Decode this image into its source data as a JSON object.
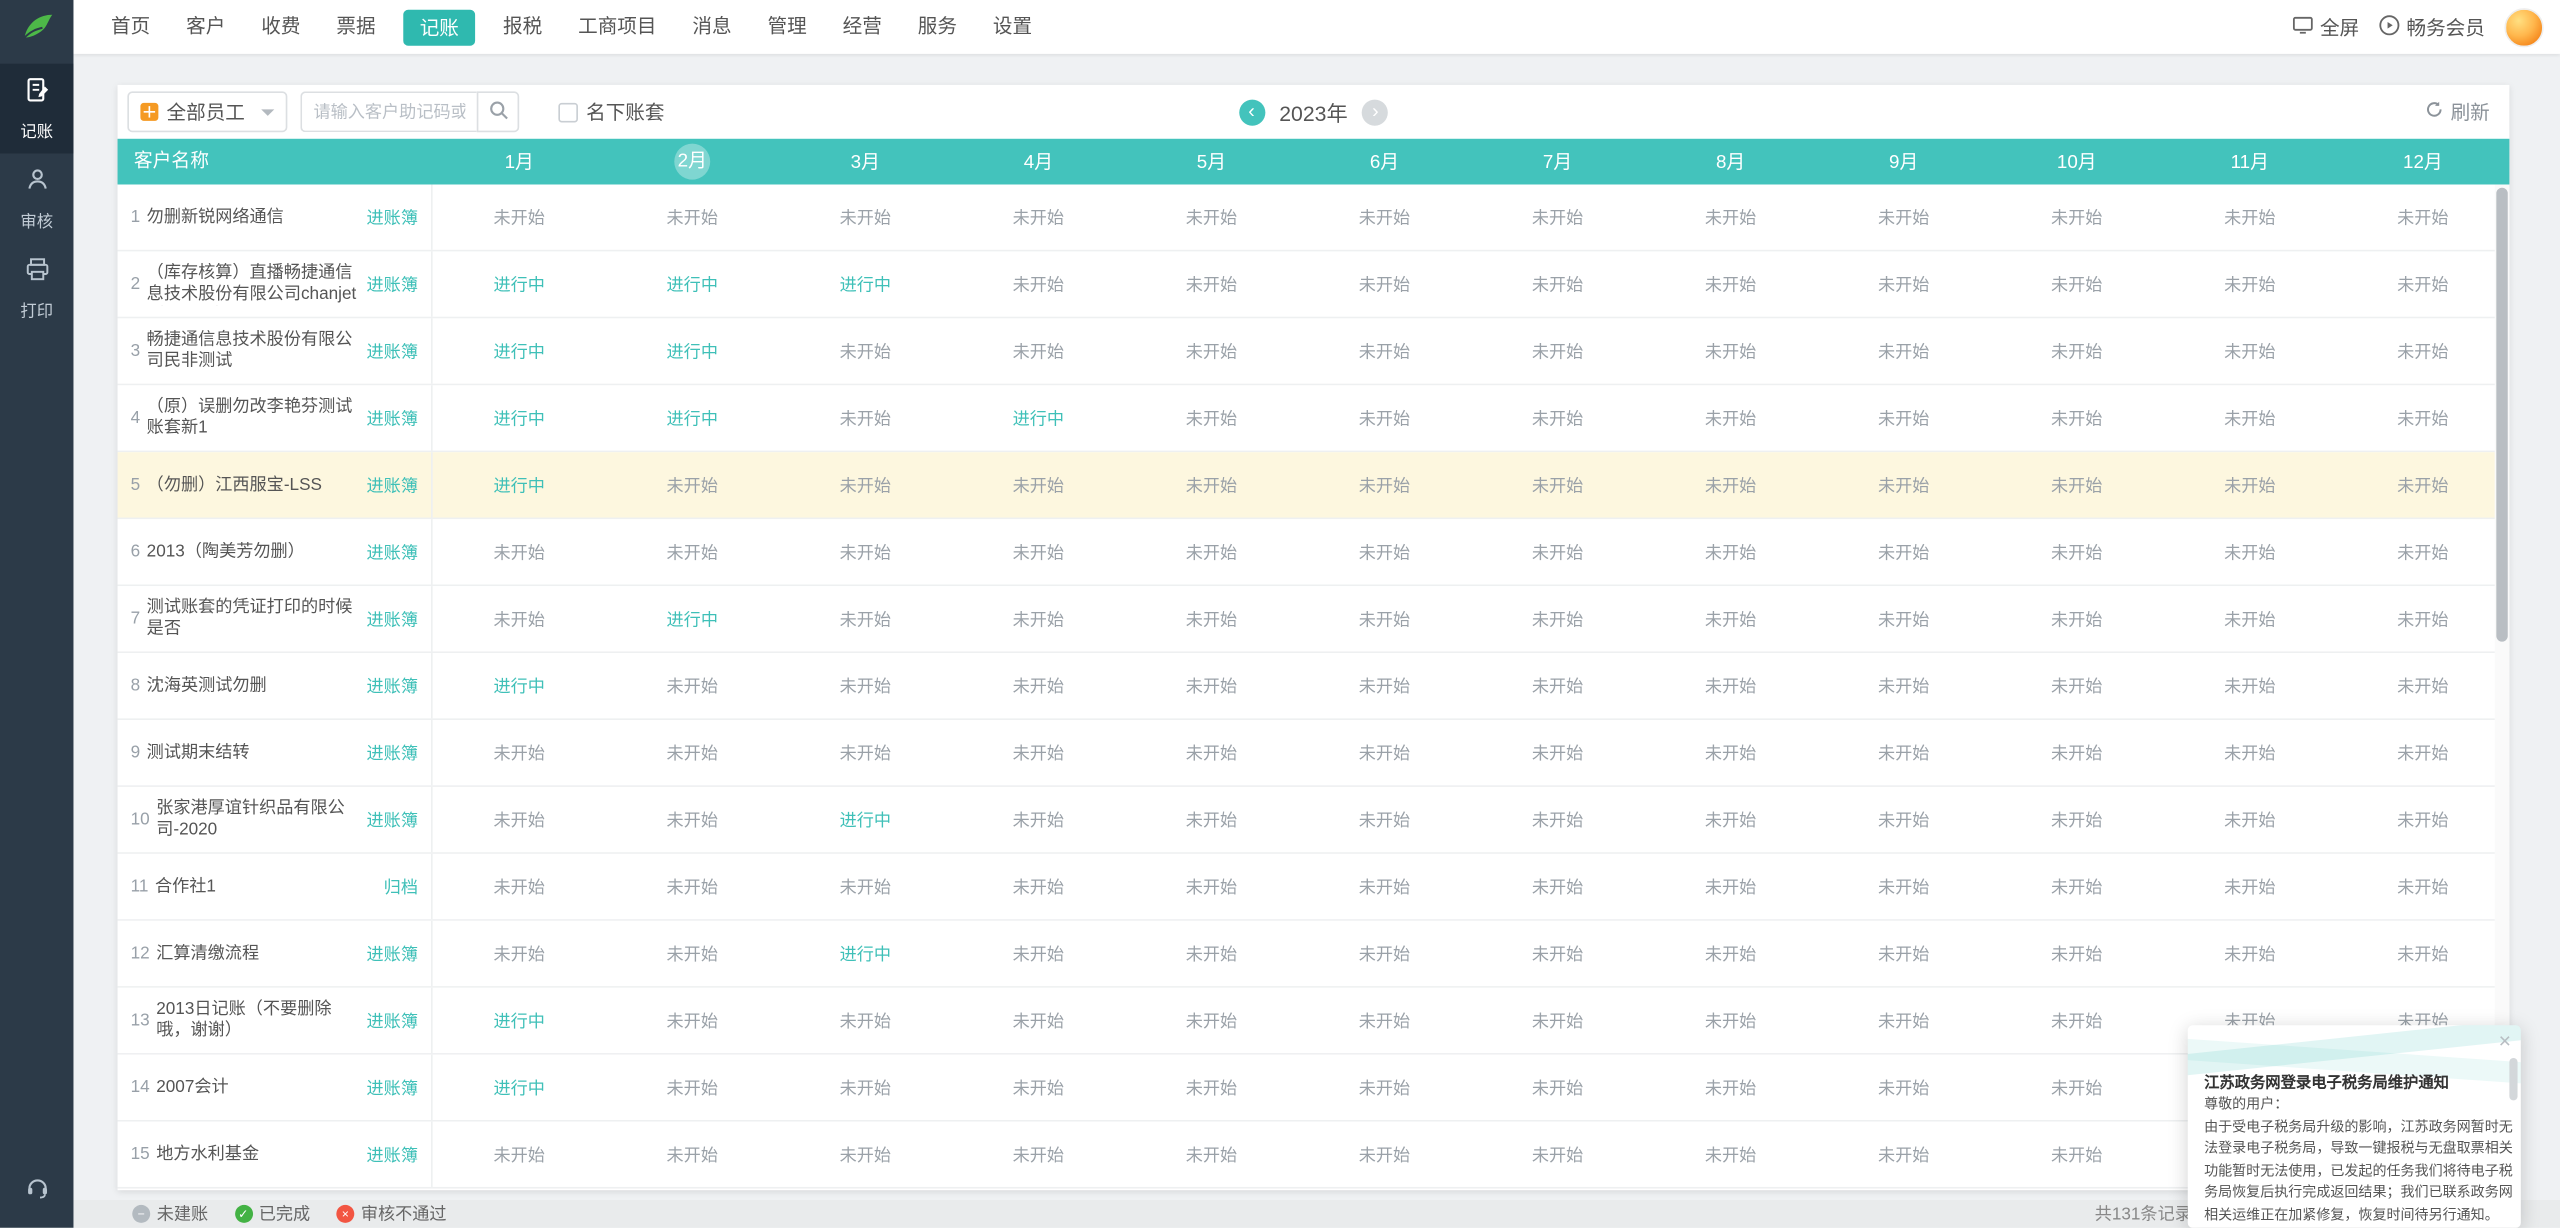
{
  "colors": {
    "accent": "#2fb9af",
    "header_teal": "#43c3bc",
    "sidebar_bg": "#2c3a48",
    "row_highlight": "#fdf7df",
    "status_muted": "#9aa1a8",
    "link_teal": "#3fc0b8"
  },
  "sidebar": {
    "items": [
      {
        "label": "记账",
        "active": true
      },
      {
        "label": "审核",
        "active": false
      },
      {
        "label": "打印",
        "active": false
      }
    ]
  },
  "topnav": {
    "items": [
      "首页",
      "客户",
      "收费",
      "票据",
      "记账",
      "报税",
      "工商项目",
      "消息",
      "管理",
      "经营",
      "服务",
      "设置"
    ],
    "active": "记账",
    "fullscreen_label": "全屏",
    "member_label": "畅务会员"
  },
  "toolbar": {
    "employee_filter": "全部员工",
    "search_placeholder": "请输入客户助记码或名称",
    "checkbox_label": "名下账套",
    "year": "2023年",
    "prev_glyph": "‹",
    "next_glyph": "›",
    "refresh_label": "刷新"
  },
  "table": {
    "name_header": "客户名称",
    "months": [
      "1月",
      "2月",
      "3月",
      "4月",
      "5月",
      "6月",
      "7月",
      "8月",
      "9月",
      "10月",
      "11月",
      "12月"
    ],
    "selected_month": "2月",
    "rows": [
      {
        "name": "勿删新锐网络通信",
        "action": "进账簿",
        "highlight": false,
        "statuses": [
          "未开始",
          "未开始",
          "未开始",
          "未开始",
          "未开始",
          "未开始",
          "未开始",
          "未开始",
          "未开始",
          "未开始",
          "未开始",
          "未开始"
        ]
      },
      {
        "name": "（库存核算）直播畅捷通信息技术股份有限公司chanjet（原账套）",
        "action": "进账簿",
        "highlight": false,
        "statuses": [
          "进行中",
          "进行中",
          "进行中",
          "未开始",
          "未开始",
          "未开始",
          "未开始",
          "未开始",
          "未开始",
          "未开始",
          "未开始",
          "未开始"
        ]
      },
      {
        "name": "畅捷通信息技术股份有限公司民非测试",
        "action": "进账簿",
        "highlight": false,
        "statuses": [
          "进行中",
          "进行中",
          "未开始",
          "未开始",
          "未开始",
          "未开始",
          "未开始",
          "未开始",
          "未开始",
          "未开始",
          "未开始",
          "未开始"
        ]
      },
      {
        "name": "（原）误删勿改李艳芬测试账套新1",
        "action": "进账簿",
        "highlight": false,
        "statuses": [
          "进行中",
          "进行中",
          "未开始",
          "进行中",
          "未开始",
          "未开始",
          "未开始",
          "未开始",
          "未开始",
          "未开始",
          "未开始",
          "未开始"
        ]
      },
      {
        "name": "（勿删）江西服宝-LSS",
        "action": "进账簿",
        "highlight": true,
        "statuses": [
          "进行中",
          "未开始",
          "未开始",
          "未开始",
          "未开始",
          "未开始",
          "未开始",
          "未开始",
          "未开始",
          "未开始",
          "未开始",
          "未开始"
        ]
      },
      {
        "name": "2013（陶美芳勿删）",
        "action": "进账簿",
        "highlight": false,
        "statuses": [
          "未开始",
          "未开始",
          "未开始",
          "未开始",
          "未开始",
          "未开始",
          "未开始",
          "未开始",
          "未开始",
          "未开始",
          "未开始",
          "未开始"
        ]
      },
      {
        "name": "测试账套的凭证打印的时候是否",
        "action": "进账簿",
        "highlight": false,
        "statuses": [
          "未开始",
          "进行中",
          "未开始",
          "未开始",
          "未开始",
          "未开始",
          "未开始",
          "未开始",
          "未开始",
          "未开始",
          "未开始",
          "未开始"
        ]
      },
      {
        "name": "沈海英测试勿删",
        "action": "进账簿",
        "highlight": false,
        "statuses": [
          "进行中",
          "未开始",
          "未开始",
          "未开始",
          "未开始",
          "未开始",
          "未开始",
          "未开始",
          "未开始",
          "未开始",
          "未开始",
          "未开始"
        ]
      },
      {
        "name": "测试期末结转",
        "action": "进账簿",
        "highlight": false,
        "statuses": [
          "未开始",
          "未开始",
          "未开始",
          "未开始",
          "未开始",
          "未开始",
          "未开始",
          "未开始",
          "未开始",
          "未开始",
          "未开始",
          "未开始"
        ]
      },
      {
        "name": "张家港厚谊针织品有限公司-2020",
        "action": "进账簿",
        "highlight": false,
        "statuses": [
          "未开始",
          "未开始",
          "进行中",
          "未开始",
          "未开始",
          "未开始",
          "未开始",
          "未开始",
          "未开始",
          "未开始",
          "未开始",
          "未开始"
        ]
      },
      {
        "name": "合作社1",
        "action": "归档",
        "highlight": false,
        "statuses": [
          "未开始",
          "未开始",
          "未开始",
          "未开始",
          "未开始",
          "未开始",
          "未开始",
          "未开始",
          "未开始",
          "未开始",
          "未开始",
          "未开始"
        ]
      },
      {
        "name": "汇算清缴流程",
        "action": "进账簿",
        "highlight": false,
        "statuses": [
          "未开始",
          "未开始",
          "进行中",
          "未开始",
          "未开始",
          "未开始",
          "未开始",
          "未开始",
          "未开始",
          "未开始",
          "未开始",
          "未开始"
        ]
      },
      {
        "name": "2013日记账（不要删除哦，谢谢）",
        "action": "进账簿",
        "highlight": false,
        "statuses": [
          "进行中",
          "未开始",
          "未开始",
          "未开始",
          "未开始",
          "未开始",
          "未开始",
          "未开始",
          "未开始",
          "未开始",
          "未开始",
          "未开始"
        ]
      },
      {
        "name": "2007会计",
        "action": "进账簿",
        "highlight": false,
        "statuses": [
          "进行中",
          "未开始",
          "未开始",
          "未开始",
          "未开始",
          "未开始",
          "未开始",
          "未开始",
          "未开始",
          "未开始",
          "未开始",
          "未开始"
        ]
      },
      {
        "name": "地方水利基金",
        "action": "进账簿",
        "highlight": false,
        "statuses": [
          "未开始",
          "未开始",
          "未开始",
          "未开始",
          "未开始",
          "未开始",
          "未开始",
          "未开始",
          "未开始",
          "未开始",
          "未开始",
          "未开始"
        ]
      }
    ]
  },
  "legend": {
    "items": [
      {
        "label": "未建账",
        "glyph": "−",
        "color": "#b3bac0"
      },
      {
        "label": "已完成",
        "glyph": "✓",
        "color": "#43b244"
      },
      {
        "label": "审核不通过",
        "glyph": "×",
        "color": "#f25542"
      }
    ]
  },
  "footer": {
    "records": "共131条记录，"
  },
  "notice": {
    "close": "×",
    "title": "江苏政务网登录电子税务局维护通知",
    "salutation": "尊敬的用户：",
    "lines": [
      "由于受电子税务局升级的影响，江苏政务网暂时无",
      "法登录电子税务局，导致一键报税与无盘取票相关",
      "功能暂时无法使用，已发起的任务我们将待电子税",
      "务局恢复后执行完成返回结果；我们已联系政务网",
      "相关运维正在加紧修复，恢复时间待另行通知。"
    ]
  }
}
